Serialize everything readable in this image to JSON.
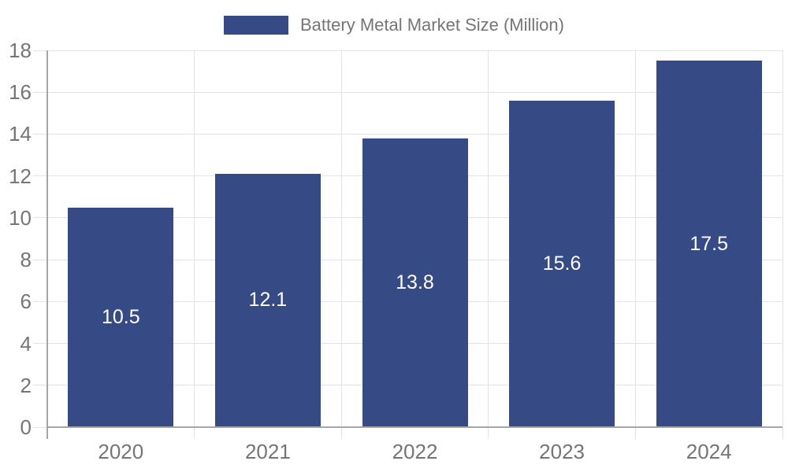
{
  "chart_data": {
    "type": "bar",
    "title": "Battery Metal Market Size (Million)",
    "legend": {
      "label": "Battery Metal Market Size (Million)",
      "position": "top-center"
    },
    "categories": [
      "2020",
      "2021",
      "2022",
      "2023",
      "2024"
    ],
    "series": [
      {
        "name": "Battery Metal Market Size (Million)",
        "values": [
          10.5,
          12.1,
          13.8,
          15.6,
          17.5
        ],
        "value_labels": [
          "10.5",
          "12.1",
          "13.8",
          "15.6",
          "17.5"
        ]
      }
    ],
    "xlabel": "",
    "ylabel": "",
    "ylim": [
      0,
      18
    ],
    "yticks": [
      0,
      2,
      4,
      6,
      8,
      10,
      12,
      14,
      16,
      18
    ],
    "grid": true,
    "value_labels_inside_bars": true,
    "colors": {
      "bar": "#364a85",
      "text": "#757575",
      "grid": "#e3e3e3",
      "axis": "#a6a6a6",
      "value_label": "#ffffff"
    }
  }
}
